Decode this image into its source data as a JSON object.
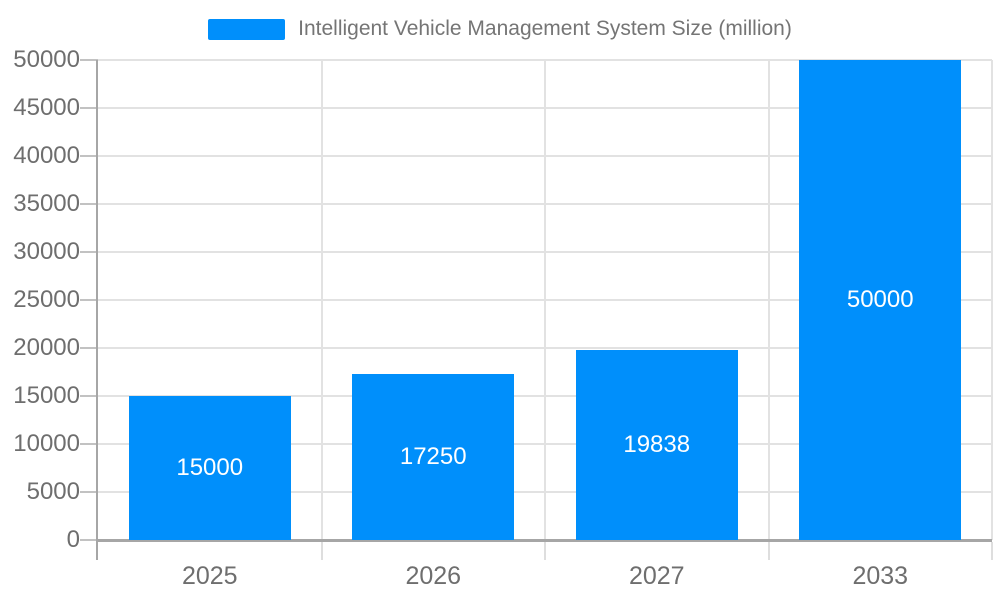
{
  "legend": {
    "series_label": "Intelligent Vehicle Management System Size (million)"
  },
  "colors": {
    "bar": "#008FFB",
    "legend_text": "#757575",
    "axis_text": "#6e6e6e",
    "grid": "#e2e2e2",
    "axis_line": "#a6a6a6",
    "y_tick": "#c2c2c2",
    "x_tick": "#dedede",
    "bar_label": "#ffffff",
    "background": "#ffffff"
  },
  "chart_data": {
    "type": "bar",
    "title": "Intelligent Vehicle Management System Size (million)",
    "series_name": "Intelligent Vehicle Management System Size (million)",
    "categories": [
      "2025",
      "2026",
      "2027",
      "2033"
    ],
    "values": [
      15000,
      17250,
      19838,
      50000
    ],
    "bar_labels": [
      "15000",
      "17250",
      "19838",
      "50000"
    ],
    "xlabel": "",
    "ylabel": "",
    "ylim": [
      0,
      50000
    ],
    "ytick_step": 5000,
    "yticks": [
      0,
      5000,
      10000,
      15000,
      20000,
      25000,
      30000,
      35000,
      40000,
      45000,
      50000
    ],
    "grid": true,
    "legend_position": "top"
  }
}
